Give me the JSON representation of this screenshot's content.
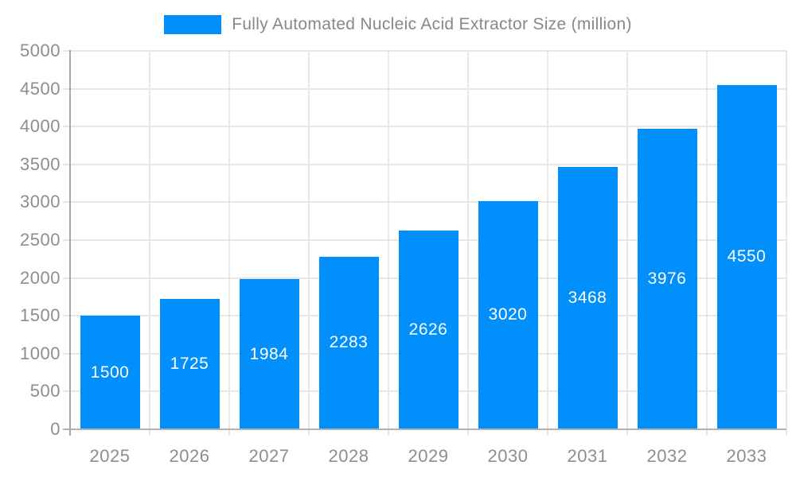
{
  "chart_data": {
    "type": "bar",
    "title": "Fully Automated Nucleic Acid Extractor Size (million)",
    "categories": [
      "2025",
      "2026",
      "2027",
      "2028",
      "2029",
      "2030",
      "2031",
      "2032",
      "2033"
    ],
    "series": [
      {
        "name": "Fully Automated Nucleic Acid Extractor Size (million)",
        "values": [
          1500,
          1725,
          1984,
          2283,
          2626,
          3020,
          3468,
          3976,
          4550
        ]
      }
    ],
    "xlabel": "",
    "ylabel": "",
    "ylim": [
      0,
      5000
    ],
    "yticks": [
      0,
      500,
      1000,
      1500,
      2000,
      2500,
      3000,
      3500,
      4000,
      4500,
      5000
    ],
    "grid": true,
    "legend_position": "top",
    "data_label_position": "inside-center",
    "colors": {
      "bar": "#008FFB",
      "grid": "#e7e7e7",
      "y_axis_line": "#a8a8a8",
      "x_axis_line": "#b2b2b2",
      "axis_label": "#8e8e8e",
      "legend_label": "#888888",
      "data_label": "#ffffff",
      "background": "#ffffff"
    }
  }
}
